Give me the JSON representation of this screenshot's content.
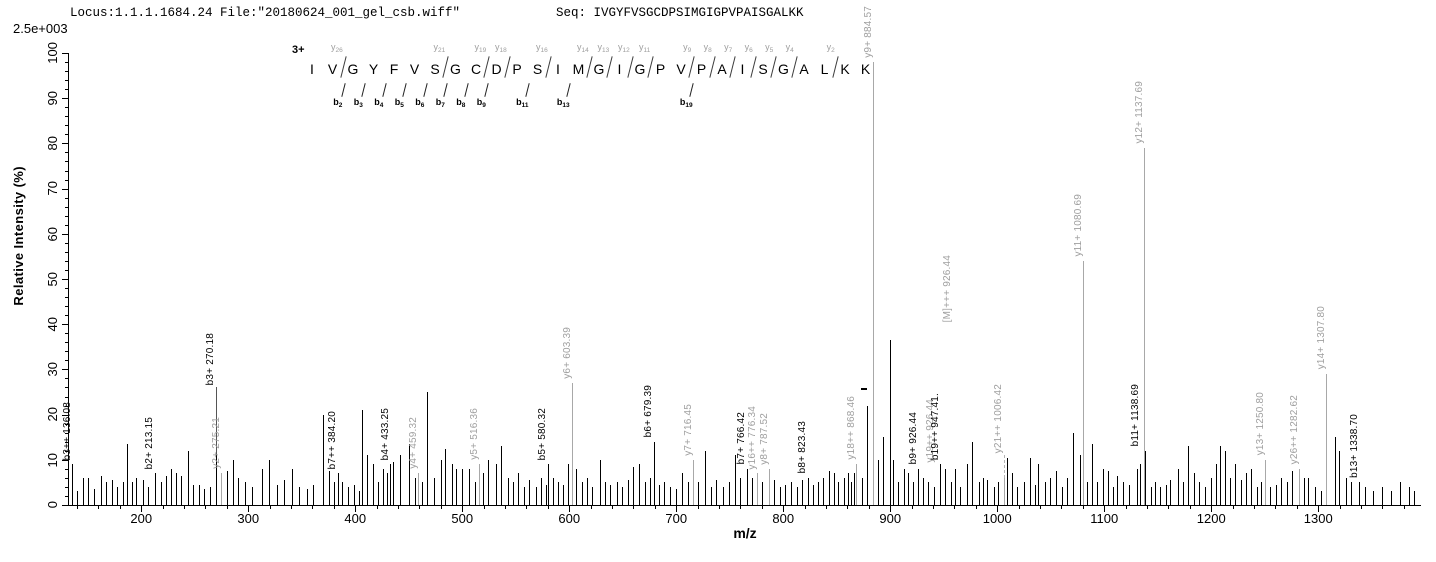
{
  "header": {
    "locus_file": "Locus:1.1.1.1684.24 File:\"20180624_001_gel_csb.wiff\"",
    "seq_line": "Seq: IVGYFVSGCDPSIMGIGPVPAISGALKK",
    "intensity_scale": "2.5e+003"
  },
  "colors": {
    "b_series": "#000000",
    "y_series": "#a8a8a8",
    "y_label_text": "#9f9f9f",
    "axis": "#000000",
    "background": "#ffffff"
  },
  "chart_data": {
    "type": "bar",
    "subtype": "ms2-fragmentation-spectrum",
    "title": "",
    "xlabel": "m/z",
    "ylabel": "Relative Intensity (%)",
    "xlim": [
      132.5,
      1396
    ],
    "ylim": [
      0,
      100
    ],
    "x_major_ticks": [
      200,
      300,
      400,
      500,
      600,
      700,
      800,
      900,
      1000,
      1100,
      1200,
      1300
    ],
    "x_minor_tick_step": 20,
    "y_major_tick_step": 10,
    "y_minor_tick_step": 2,
    "precursor_charge": "3+",
    "sequence": "IVGYFVSGCDPSIMGIGPVPAISGALKK",
    "y_ion_ladder": [
      26,
      21,
      19,
      18,
      16,
      14,
      13,
      12,
      11,
      9,
      8,
      7,
      6,
      5,
      4,
      2
    ],
    "b_ion_ladder": [
      2,
      3,
      4,
      5,
      6,
      7,
      8,
      9,
      11,
      13,
      19
    ],
    "labeled_peaks": [
      {
        "label": "b3++ 136.08",
        "mz": 136.08,
        "intensity": 9,
        "series": "b"
      },
      {
        "label": "b2+ 213.15",
        "mz": 213.15,
        "intensity": 7,
        "series": "b"
      },
      {
        "label": "b3+ 270.18",
        "mz": 270.18,
        "intensity": 11,
        "series": "b",
        "label_y": 26
      },
      {
        "label": "y2+ 275.21",
        "mz": 275.21,
        "intensity": 7,
        "series": "y"
      },
      {
        "label": "b7++ 384.20",
        "mz": 384.2,
        "intensity": 7,
        "series": "b"
      },
      {
        "label": "b4+ 433.25",
        "mz": 433.25,
        "intensity": 9,
        "series": "b"
      },
      {
        "label": "y4+ 459.32",
        "mz": 459.32,
        "intensity": 7,
        "series": "y"
      },
      {
        "label": "y5+ 516.36",
        "mz": 516.36,
        "intensity": 9,
        "series": "y"
      },
      {
        "label": "b5+ 580.32",
        "mz": 580.32,
        "intensity": 9,
        "series": "b"
      },
      {
        "label": "y6+ 603.39",
        "mz": 603.39,
        "intensity": 27,
        "series": "y"
      },
      {
        "label": "b6+ 679.39",
        "mz": 679.39,
        "intensity": 14,
        "series": "b"
      },
      {
        "label": "y7+ 716.45",
        "mz": 716.45,
        "intensity": 10,
        "series": "y"
      },
      {
        "label": "b7+ 766.42",
        "mz": 766.42,
        "intensity": 8,
        "series": "b"
      },
      {
        "label": "y16++ 776.34",
        "mz": 776.34,
        "intensity": 7,
        "series": "y"
      },
      {
        "label": "y8+ 787.52",
        "mz": 787.52,
        "intensity": 8,
        "series": "y"
      },
      {
        "label": "b8+ 823.43",
        "mz": 823.43,
        "intensity": 6,
        "series": "b"
      },
      {
        "label": "y18++ 868.46",
        "mz": 868.46,
        "intensity": 9,
        "series": "y"
      },
      {
        "label": "y9+ 884.57",
        "mz": 884.57,
        "intensity": 98,
        "series": "y"
      },
      {
        "label": "b9+ 926.44",
        "mz": 926.44,
        "intensity": 8,
        "series": "b"
      },
      {
        "label": "y19++ 926.44",
        "mz": 926.44,
        "intensity": 7,
        "series": "y",
        "dx": 17,
        "label_y": 9,
        "label_only": true
      },
      {
        "label": "[M]+++ 926.44",
        "mz": 926.44,
        "intensity": 7,
        "series": "y",
        "dx": 34,
        "label_y": 40,
        "label_only": true
      },
      {
        "label": "b19++ 947.41.",
        "mz": 947.41,
        "intensity": 9,
        "series": "b"
      },
      {
        "label": "y21++ 1006.42",
        "mz": 1006.42,
        "intensity": 6,
        "series": "y",
        "label_y": 11,
        "dashed": true
      },
      {
        "label": "y11+ 1080.69",
        "mz": 1080.69,
        "intensity": 54,
        "series": "y"
      },
      {
        "label": "y12+ 1137.69",
        "mz": 1137.69,
        "intensity": 79,
        "series": "y"
      },
      {
        "label": "b11+ 1138.69",
        "mz": 1138.69,
        "intensity": 12,
        "series": "b",
        "dx": -5
      },
      {
        "label": "y13+ 1250.80",
        "mz": 1250.8,
        "intensity": 10,
        "series": "y"
      },
      {
        "label": "y26++ 1282.62",
        "mz": 1282.62,
        "intensity": 8,
        "series": "y"
      },
      {
        "label": "y14+ 1307.80",
        "mz": 1307.8,
        "intensity": 29,
        "series": "y"
      },
      {
        "label": "b13+ 1338.70",
        "mz": 1338.7,
        "intensity": 5,
        "series": "b"
      }
    ],
    "isotope_marker": {
      "mz": 875.5,
      "intensity": 25.5
    },
    "background_peaks": [
      [
        140,
        3
      ],
      [
        146,
        6
      ],
      [
        151,
        6
      ],
      [
        156,
        3.5
      ],
      [
        163,
        6.5
      ],
      [
        168,
        5
      ],
      [
        173,
        5.5
      ],
      [
        178,
        4
      ],
      [
        183,
        5
      ],
      [
        187,
        13.5
      ],
      [
        192,
        5
      ],
      [
        196,
        6
      ],
      [
        202,
        5.5
      ],
      [
        207,
        4
      ],
      [
        219,
        5
      ],
      [
        224,
        6.5
      ],
      [
        228,
        8
      ],
      [
        233,
        7
      ],
      [
        238,
        6.5
      ],
      [
        244,
        12
      ],
      [
        249,
        4.5
      ],
      [
        254,
        4.5
      ],
      [
        259,
        3.5
      ],
      [
        265,
        4
      ],
      [
        281,
        7.5
      ],
      [
        286,
        10
      ],
      [
        291,
        6
      ],
      [
        297,
        5
      ],
      [
        304,
        4
      ],
      [
        313,
        8
      ],
      [
        320,
        10
      ],
      [
        327,
        4.5
      ],
      [
        334,
        5.5
      ],
      [
        341,
        8
      ],
      [
        348,
        4
      ],
      [
        355,
        3.5
      ],
      [
        361,
        4.5
      ],
      [
        370,
        20
      ],
      [
        376,
        7.5
      ],
      [
        381,
        5
      ],
      [
        388,
        5
      ],
      [
        394,
        4
      ],
      [
        399,
        4.5
      ],
      [
        404,
        3
      ],
      [
        407,
        21
      ],
      [
        411,
        11
      ],
      [
        417,
        9
      ],
      [
        422,
        5
      ],
      [
        426,
        8
      ],
      [
        430,
        7
      ],
      [
        436,
        9.5
      ],
      [
        442,
        11
      ],
      [
        451,
        13.5
      ],
      [
        456,
        6
      ],
      [
        463,
        5
      ],
      [
        468,
        25
      ],
      [
        474,
        6
      ],
      [
        481,
        10
      ],
      [
        484,
        12.5
      ],
      [
        491,
        9
      ],
      [
        495,
        8
      ],
      [
        500,
        8
      ],
      [
        507,
        8
      ],
      [
        512,
        5
      ],
      [
        520,
        7
      ],
      [
        525,
        10
      ],
      [
        532,
        9
      ],
      [
        537,
        13
      ],
      [
        543,
        6
      ],
      [
        548,
        5
      ],
      [
        553,
        7
      ],
      [
        558,
        4
      ],
      [
        563,
        5.5
      ],
      [
        569,
        4
      ],
      [
        574,
        6
      ],
      [
        579,
        4.5
      ],
      [
        585,
        6
      ],
      [
        590,
        5
      ],
      [
        595,
        4.5
      ],
      [
        599,
        9
      ],
      [
        607,
        8
      ],
      [
        612,
        5
      ],
      [
        617,
        6
      ],
      [
        622,
        4
      ],
      [
        629,
        10
      ],
      [
        634,
        5
      ],
      [
        639,
        4.5
      ],
      [
        645,
        5
      ],
      [
        650,
        4
      ],
      [
        655,
        5.5
      ],
      [
        660,
        8.5
      ],
      [
        666,
        9
      ],
      [
        671,
        5
      ],
      [
        676,
        6
      ],
      [
        684,
        4.5
      ],
      [
        689,
        5
      ],
      [
        695,
        4
      ],
      [
        700,
        3.5
      ],
      [
        706,
        7
      ],
      [
        711,
        5
      ],
      [
        721,
        5
      ],
      [
        727,
        12
      ],
      [
        733,
        4
      ],
      [
        738,
        5.5
      ],
      [
        744,
        4
      ],
      [
        750,
        5
      ],
      [
        755,
        11
      ],
      [
        760,
        6
      ],
      [
        771,
        6
      ],
      [
        781,
        5
      ],
      [
        792,
        5.5
      ],
      [
        797,
        4
      ],
      [
        802,
        4.5
      ],
      [
        808,
        5
      ],
      [
        813,
        4
      ],
      [
        818,
        5.5
      ],
      [
        828,
        4.5
      ],
      [
        833,
        5
      ],
      [
        838,
        6
      ],
      [
        843,
        7.5
      ],
      [
        848,
        7
      ],
      [
        852,
        5
      ],
      [
        857,
        6
      ],
      [
        861,
        7
      ],
      [
        864,
        5
      ],
      [
        867,
        7
      ],
      [
        874,
        6
      ],
      [
        879,
        22
      ],
      [
        889,
        10
      ],
      [
        894,
        15
      ],
      [
        900,
        36.5
      ],
      [
        903,
        10
      ],
      [
        908,
        5
      ],
      [
        913,
        8
      ],
      [
        917,
        7
      ],
      [
        922,
        5
      ],
      [
        931,
        6
      ],
      [
        936,
        5
      ],
      [
        941,
        4
      ],
      [
        952,
        8
      ],
      [
        957,
        5
      ],
      [
        961,
        8
      ],
      [
        966,
        4
      ],
      [
        972,
        9
      ],
      [
        977,
        14
      ],
      [
        983,
        5
      ],
      [
        987,
        6
      ],
      [
        991,
        5.5
      ],
      [
        997,
        4
      ],
      [
        1001,
        5
      ],
      [
        1010,
        10.5
      ],
      [
        1014,
        7
      ],
      [
        1019,
        4
      ],
      [
        1025,
        5
      ],
      [
        1031,
        10.5
      ],
      [
        1036,
        4.5
      ],
      [
        1039,
        9
      ],
      [
        1045,
        5
      ],
      [
        1050,
        6
      ],
      [
        1055,
        7.5
      ],
      [
        1061,
        4
      ],
      [
        1066,
        6
      ],
      [
        1071,
        16
      ],
      [
        1078,
        11
      ],
      [
        1084,
        5
      ],
      [
        1089,
        13.5
      ],
      [
        1094,
        5
      ],
      [
        1099,
        8
      ],
      [
        1104,
        7.5
      ],
      [
        1109,
        4
      ],
      [
        1112,
        6.5
      ],
      [
        1118,
        5
      ],
      [
        1124,
        4.5
      ],
      [
        1131,
        8
      ],
      [
        1134,
        9
      ],
      [
        1144,
        4
      ],
      [
        1148,
        5
      ],
      [
        1153,
        4
      ],
      [
        1158,
        4.5
      ],
      [
        1162,
        5.5
      ],
      [
        1169,
        8
      ],
      [
        1174,
        5
      ],
      [
        1179,
        13
      ],
      [
        1184,
        7
      ],
      [
        1189,
        5
      ],
      [
        1195,
        4
      ],
      [
        1200,
        6
      ],
      [
        1205,
        9
      ],
      [
        1209,
        13
      ],
      [
        1213,
        12
      ],
      [
        1218,
        6
      ],
      [
        1223,
        9
      ],
      [
        1228,
        5.5
      ],
      [
        1233,
        7
      ],
      [
        1238,
        8
      ],
      [
        1243,
        4
      ],
      [
        1247,
        5
      ],
      [
        1255,
        4
      ],
      [
        1261,
        4.5
      ],
      [
        1266,
        6
      ],
      [
        1271,
        5
      ],
      [
        1276,
        7.5
      ],
      [
        1287,
        6
      ],
      [
        1291,
        6
      ],
      [
        1297,
        4
      ],
      [
        1303,
        3
      ],
      [
        1316,
        15
      ],
      [
        1320,
        12
      ],
      [
        1326,
        6
      ],
      [
        1331,
        5
      ],
      [
        1344,
        4
      ],
      [
        1352,
        3
      ],
      [
        1360,
        4
      ],
      [
        1368,
        3
      ],
      [
        1377,
        5
      ],
      [
        1385,
        4
      ],
      [
        1390,
        3
      ]
    ]
  }
}
